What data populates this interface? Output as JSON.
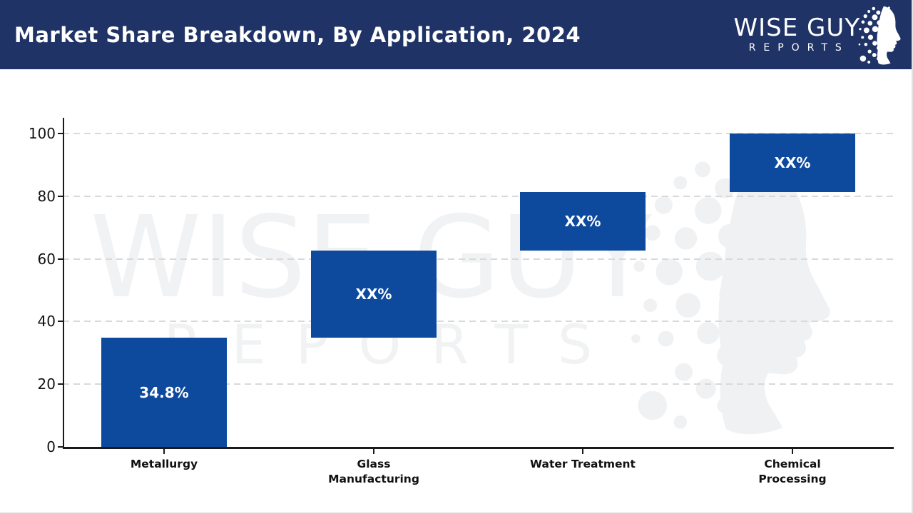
{
  "header": {
    "title": "Market Share Breakdown, By Application, 2024",
    "logo": {
      "line1": "WISE GUY",
      "line2": "REPORTS"
    }
  },
  "watermark": {
    "line1": "WISE GUY",
    "line2": "REPORTS"
  },
  "colors": {
    "header_bg": "#1f3366",
    "bar": "#0d4a9e",
    "bar_label": "#ffffff",
    "gridline": "#d9d9d9",
    "axis": "#1a1a1a",
    "watermark": "#f1f2f4"
  },
  "chart_data": {
    "type": "bar",
    "subtype": "waterfall",
    "title": "Market Share Breakdown, By Application, 2024",
    "categories": [
      "Metallurgy",
      "Glass\nManufacturing",
      "Water Treatment",
      "Chemical\nProcessing"
    ],
    "bars": [
      {
        "category": "Metallurgy",
        "start": 0,
        "end": 34.8,
        "label": "34.8%"
      },
      {
        "category": "Glass Manufacturing",
        "start": 34.8,
        "end": 62.6,
        "label": "XX%"
      },
      {
        "category": "Water Treatment",
        "start": 62.6,
        "end": 81.3,
        "label": "XX%"
      },
      {
        "category": "Chemical Processing",
        "start": 81.3,
        "end": 100,
        "label": "XX%"
      }
    ],
    "ylim": [
      0,
      100
    ],
    "yticks": [
      0,
      20,
      40,
      60,
      80,
      100
    ],
    "grid": "horizontal-dashed",
    "legend": null,
    "xlabel": "",
    "ylabel": ""
  }
}
